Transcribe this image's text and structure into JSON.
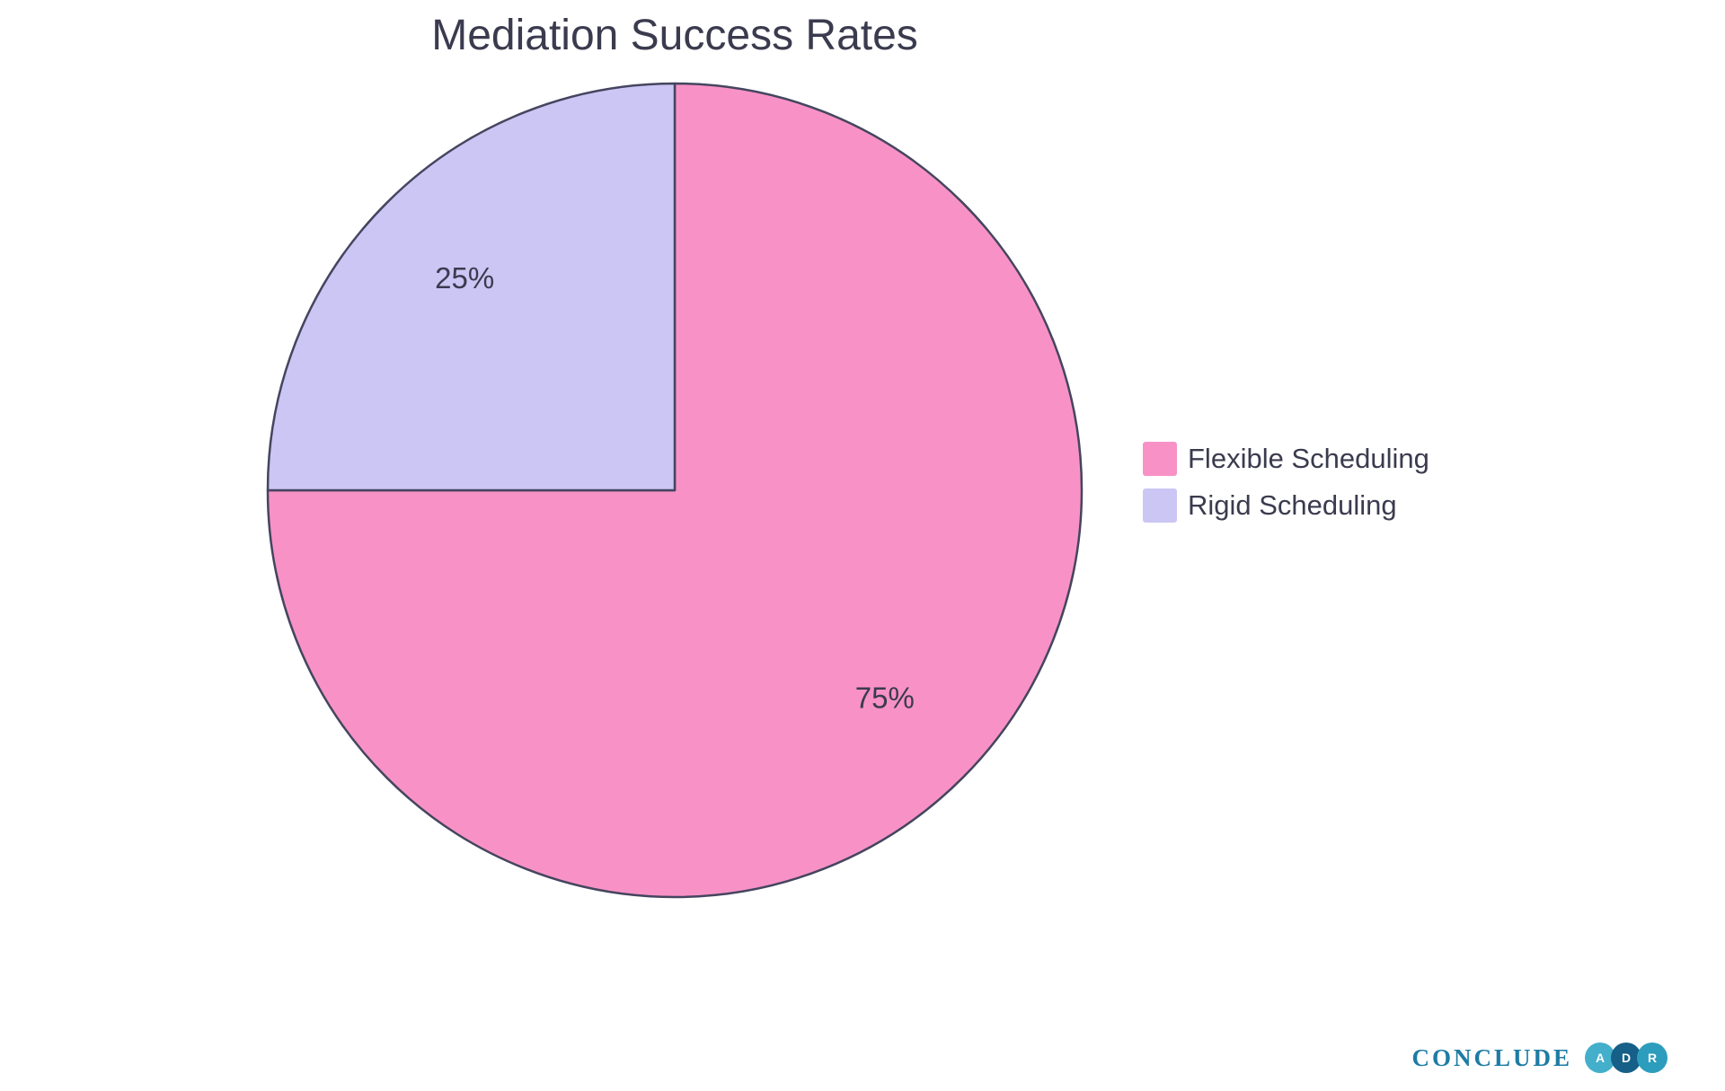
{
  "title": "Mediation Success Rates",
  "chart_data": {
    "type": "pie",
    "title": "Mediation Success Rates",
    "start_angle_deg": -90,
    "direction": "clockwise",
    "stroke_color": "#45455f",
    "legend_position": "right",
    "slices": [
      {
        "label": "Flexible Scheduling",
        "value": 75,
        "display": "75%",
        "color": "#f892c6"
      },
      {
        "label": "Rigid Scheduling",
        "value": 25,
        "display": "25%",
        "color": "#ccc6f4"
      }
    ]
  },
  "branding": {
    "wordmark": "CONCLUDE",
    "wordmark_color": "#1d7ca4",
    "badges": [
      {
        "letter": "A",
        "color": "#43afcb"
      },
      {
        "letter": "D",
        "color": "#155f88"
      },
      {
        "letter": "R",
        "color": "#2d9dbd"
      }
    ]
  },
  "colors": {
    "title_text": "#3b3b4f",
    "label_text": "#3b3b4f",
    "background": "#ffffff"
  }
}
